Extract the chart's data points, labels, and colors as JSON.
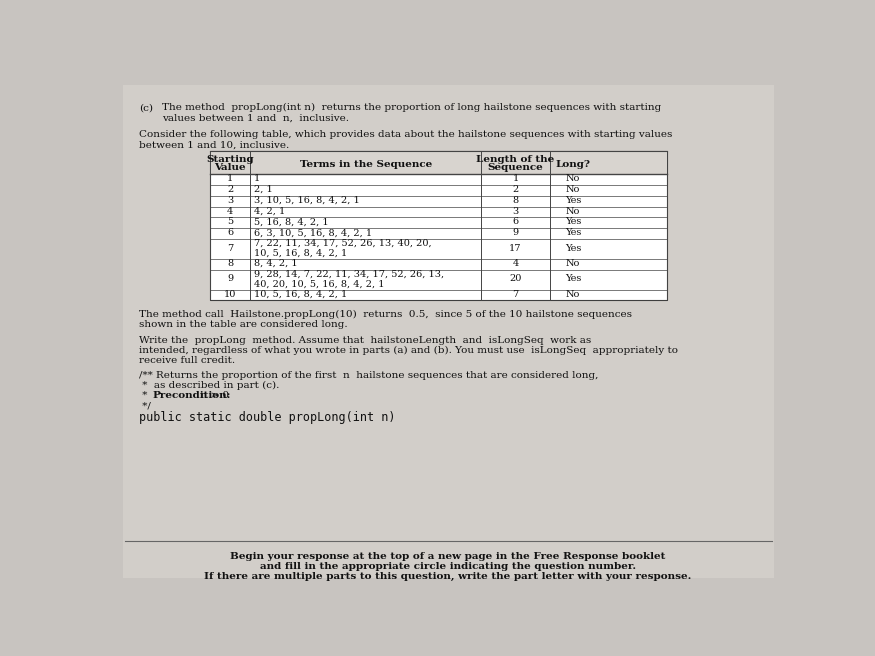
{
  "bg_color": "#c8c4c0",
  "page_bg": "#d8d4d0",
  "intro_text_1": "The method  propLong(int n)  returns the proportion of long hailstone sequences with starting",
  "intro_text_2": "values between 1 and  n,  inclusive.",
  "consider_text_1": "Consider the following table, which provides data about the hailstone sequences with starting values",
  "consider_text_2": "between 1 and 10, inclusive.",
  "table_data": [
    [
      "1",
      "1",
      "1",
      "No"
    ],
    [
      "2",
      "2, 1",
      "2",
      "No"
    ],
    [
      "3",
      "3, 10, 5, 16, 8, 4, 2, 1",
      "8",
      "Yes"
    ],
    [
      "4",
      "4, 2, 1",
      "3",
      "No"
    ],
    [
      "5",
      "5, 16, 8, 4, 2, 1",
      "6",
      "Yes"
    ],
    [
      "6",
      "6, 3, 10, 5, 16, 8, 4, 2, 1",
      "9",
      "Yes"
    ],
    [
      "7",
      "7, 22, 11, 34, 17, 52, 26, 13, 40, 20,\n10, 5, 16, 8, 4, 2, 1",
      "17",
      "Yes"
    ],
    [
      "8",
      "8, 4, 2, 1",
      "4",
      "No"
    ],
    [
      "9",
      "9, 28, 14, 7, 22, 11, 34, 17, 52, 26, 13,\n40, 20, 10, 5, 16, 8, 4, 2, 1",
      "20",
      "Yes"
    ],
    [
      "10",
      "10, 5, 16, 8, 4, 2, 1",
      "7",
      "No"
    ]
  ],
  "method_call_line1": "The method call  Hailstone.propLong(10)  returns  0.5,  since 5 of the 10 hailstone sequences",
  "method_call_line2": "shown in the table are considered long.",
  "write_line1": "Write the  propLong  method. Assume that  hailstoneLength  and  isLongSeq  work as",
  "write_line2": "intended, regardless of what you wrote in parts (a) and (b). You must use  isLongSeq  appropriately to",
  "write_line3": "receive full credit.",
  "comment1": "/** Returns the proportion of the first  n  hailstone sequences that are considered long,",
  "comment2": " *  as described in part (c).",
  "comment3_pre": " *  ",
  "comment3_bold": "Precondition:",
  "comment3_rest": "  n > 0",
  "comment4": " */",
  "code_line": "public static double propLong(int n)",
  "footer1": "Begin your response at the top of a new page in the Free Response booklet",
  "footer2": "and fill in the appropriate circle indicating the question number.",
  "footer3": "If there are multiple parts to this question, write the part letter with your response."
}
